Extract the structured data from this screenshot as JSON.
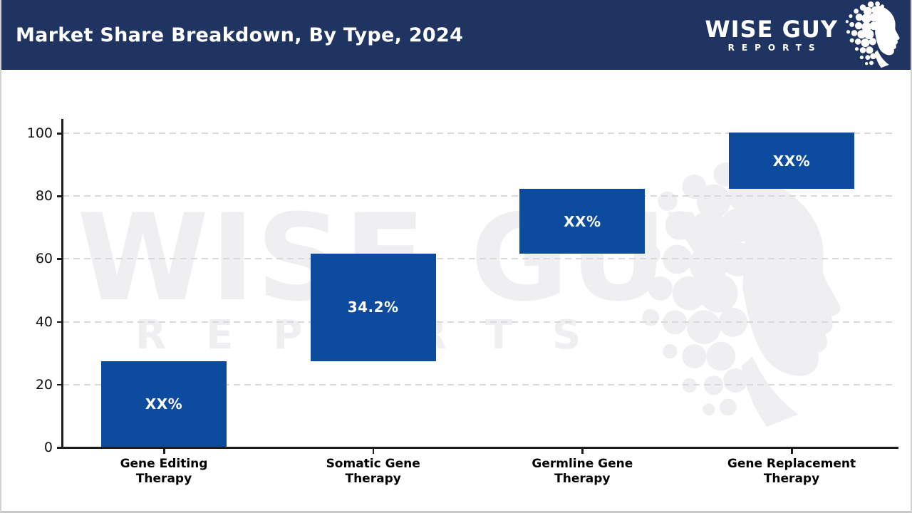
{
  "header": {
    "title": "Market Share Breakdown, By Type, 2024",
    "bg_color": "#1f3461",
    "logo": {
      "line1": "WISE GUY",
      "line2": "REPORTS"
    }
  },
  "watermark": {
    "line1": "WISE GUY",
    "line2": "REPORTS"
  },
  "chart_data": {
    "type": "bar",
    "subtype": "floating-waterfall",
    "title": "Market Share Breakdown, By Type, 2024",
    "categories": [
      {
        "line1": "Gene Editing",
        "line2": "Therapy"
      },
      {
        "line1": "Somatic Gene",
        "line2": "Therapy"
      },
      {
        "line1": "Germline Gene",
        "line2": "Therapy"
      },
      {
        "line1": "Gene Replacement",
        "line2": "Therapy"
      }
    ],
    "segments": [
      {
        "category": "Gene Editing Therapy",
        "start": 0,
        "end": 27.3,
        "value_label": "XX%"
      },
      {
        "category": "Somatic Gene Therapy",
        "start": 27.3,
        "end": 61.5,
        "value_label": "34.2%"
      },
      {
        "category": "Germline Gene Therapy",
        "start": 61.5,
        "end": 82,
        "value_label": "XX%"
      },
      {
        "category": "Gene Replacement Therapy",
        "start": 82,
        "end": 100,
        "value_label": "XX%"
      }
    ],
    "xlabel": "",
    "ylabel": "",
    "ylim": [
      0,
      100
    ],
    "yticks": [
      0,
      20,
      40,
      60,
      80,
      100
    ],
    "grid": "horizontal-dashed",
    "legend": "none",
    "bar_color": "#0d4b9e",
    "bar_label_color": "#ffffff",
    "axis_color": "#1c1c1c",
    "gridline_color": "#d9d9d9",
    "watermark_color": "#efeff1"
  }
}
